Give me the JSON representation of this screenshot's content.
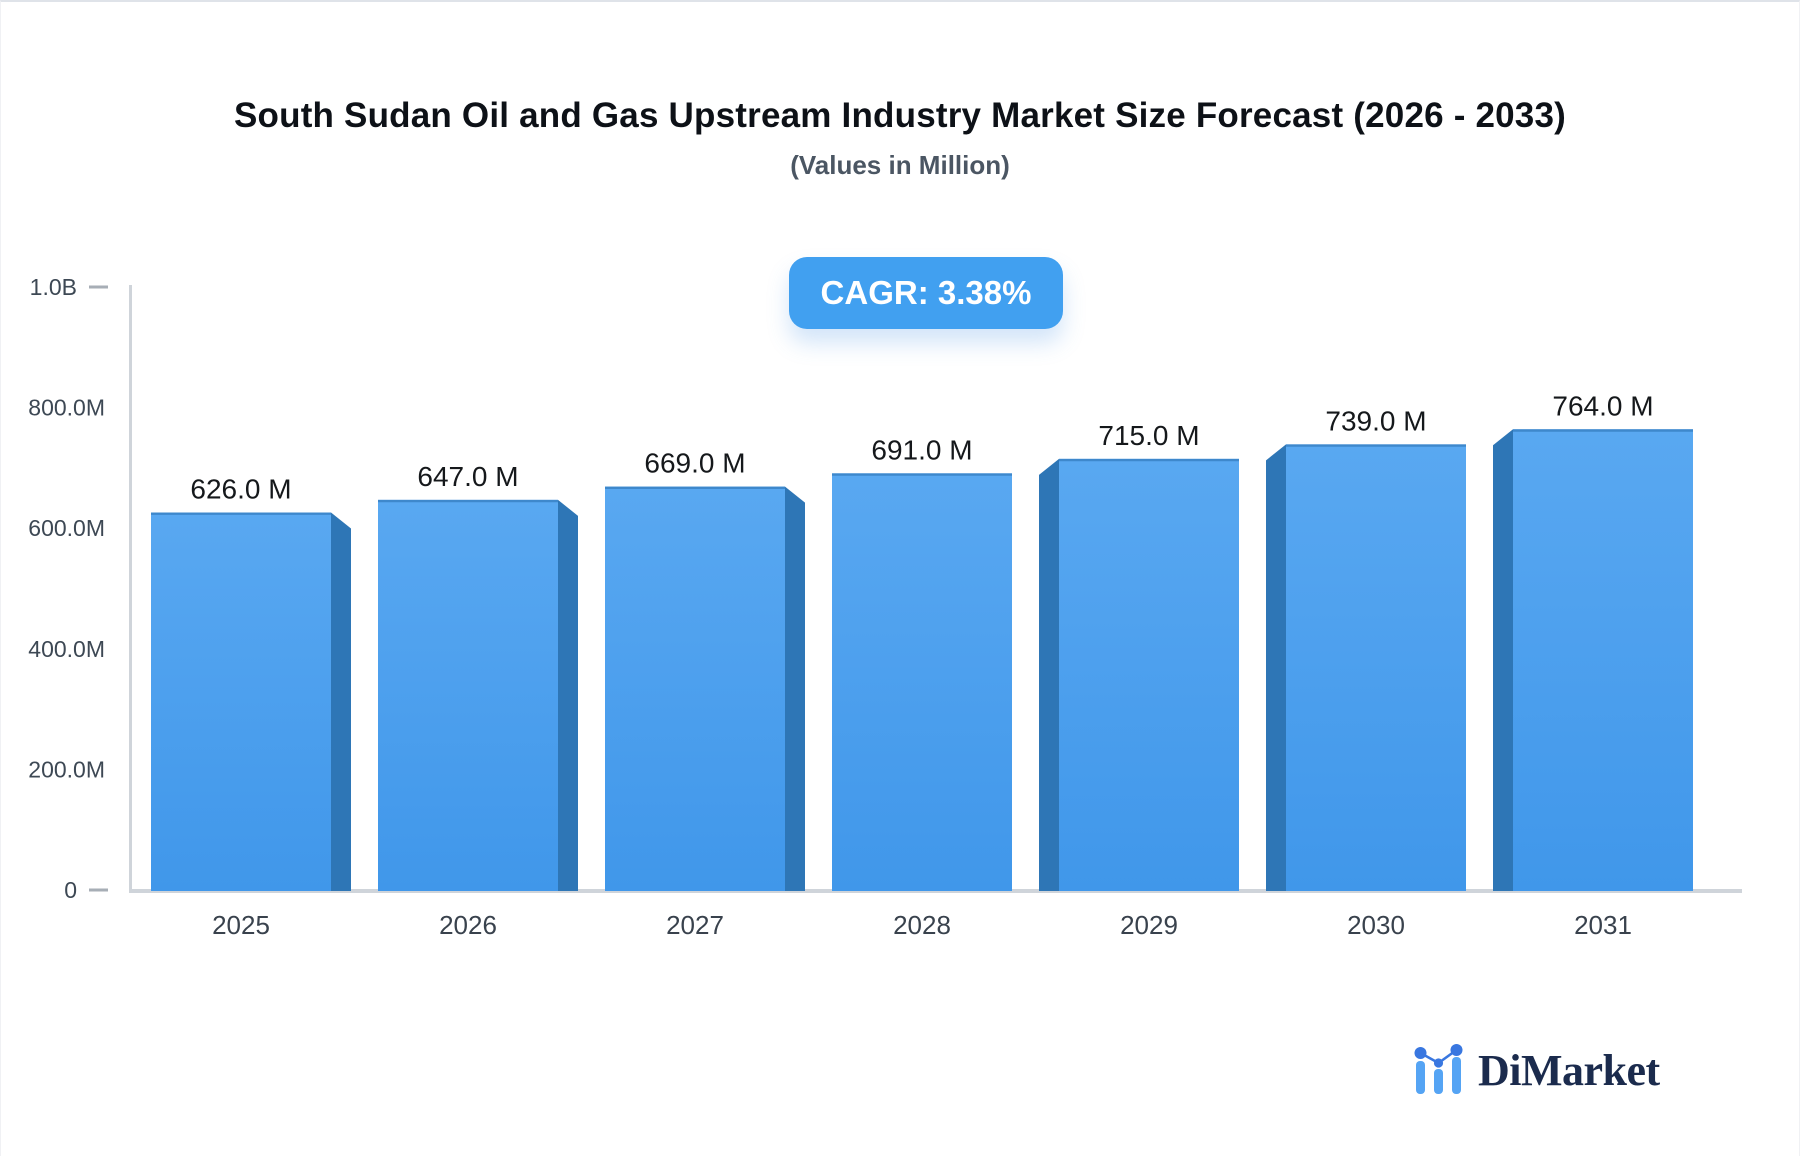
{
  "page": {
    "title": "South Sudan Oil and Gas Upstream Industry Market Size Forecast (2026 - 2033)",
    "subtitle": "(Values in Million)",
    "cagr_badge": "CAGR: 3.38%"
  },
  "brand": {
    "name": "DiMarket",
    "icon": "dimarket-bar-chart-icon"
  },
  "chart_data": {
    "type": "bar",
    "title": "South Sudan Oil and Gas Upstream Industry Market Size Forecast (2026 - 2033)",
    "subtitle": "(Values in Million)",
    "categories": [
      "2025",
      "2026",
      "2027",
      "2028",
      "2029",
      "2030",
      "2031"
    ],
    "values": [
      626,
      647,
      669,
      691,
      715,
      739,
      764
    ],
    "value_labels": [
      "626.0 M",
      "647.0 M",
      "669.0 M",
      "691.0 M",
      "715.0 M",
      "739.0 M",
      "764.0 M"
    ],
    "value_unit": "Million",
    "y_tick_labels": [
      "1.0B",
      "800.0M",
      "600.0M",
      "400.0M",
      "200.0M",
      "0"
    ],
    "y_tick_values": [
      1000,
      800,
      600,
      400,
      200,
      0
    ],
    "ylim": [
      0,
      1000
    ],
    "grid": false,
    "legend": "none",
    "annotation": "CAGR: 3.38%",
    "colors": {
      "bar_face_top": "#59a8f1",
      "bar_face_bottom": "#4097ea",
      "bar_side": "#2e76b6",
      "bar_top_stroke": "#3e88cc",
      "axis_line": "#cfd4da",
      "tick_dash": "#a7aeb6",
      "badge": "#41a0f0"
    }
  }
}
